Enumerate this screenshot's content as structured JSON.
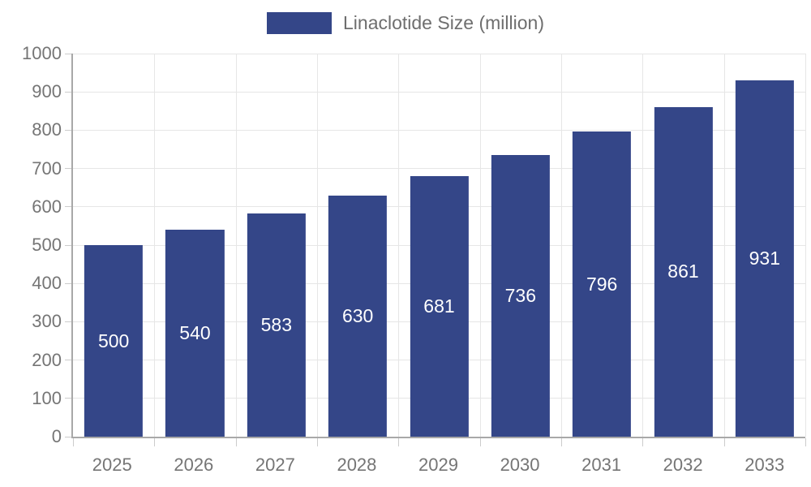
{
  "legend": {
    "label": "Linaclotide Size (million)"
  },
  "chart_data": {
    "type": "bar",
    "title": "Linaclotide Size (million)",
    "categories": [
      "2025",
      "2026",
      "2027",
      "2028",
      "2029",
      "2030",
      "2031",
      "2032",
      "2033"
    ],
    "series": [
      {
        "name": "Linaclotide Size (million)",
        "values": [
          500,
          540,
          583,
          630,
          681,
          736,
          796,
          861,
          931
        ]
      }
    ],
    "xlabel": "",
    "ylabel": "",
    "ylim": [
      0,
      1000
    ],
    "yticks": [
      0,
      100,
      200,
      300,
      400,
      500,
      600,
      700,
      800,
      900,
      1000
    ],
    "grid": true,
    "legend_position": "top-center",
    "value_labels": "inside-center",
    "colors": {
      "bar": "#344688",
      "grid": "#e6e6e6",
      "tick": "#cccccc",
      "axis": "#a8a8a8",
      "tick_label": "#757575",
      "legend_text": "#6e6e6e",
      "value_label": "#ffffff",
      "background": "#ffffff"
    }
  }
}
